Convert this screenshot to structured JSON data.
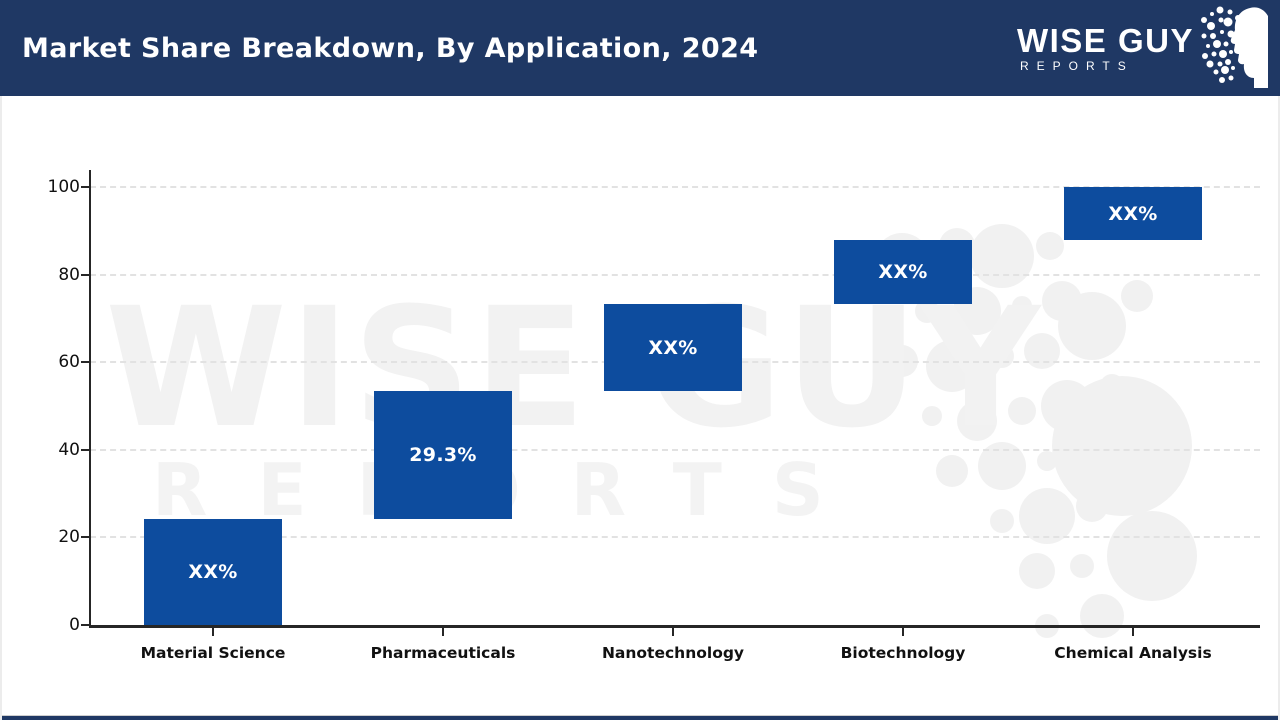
{
  "header": {
    "title": "Market Share Breakdown, By Application, 2024",
    "logo": {
      "brand_top": "WISE GUY",
      "brand_bottom": "REPORTS"
    }
  },
  "watermark": {
    "line1": "WISE GUY",
    "line2": "REPORTS"
  },
  "chart_data": {
    "type": "bar",
    "variant": "waterfall",
    "title": "Market Share Breakdown, By Application, 2024",
    "categories": [
      "Material Science",
      "Pharmaceuticals",
      "Nanotechnology",
      "Biotechnology",
      "Chemical Analysis"
    ],
    "segments": [
      {
        "category": "Material Science",
        "start": 0,
        "end": 24.2,
        "label": "XX%"
      },
      {
        "category": "Pharmaceuticals",
        "start": 24.2,
        "end": 53.5,
        "label": "29.3%"
      },
      {
        "category": "Nanotechnology",
        "start": 53.5,
        "end": 73.2,
        "label": "XX%"
      },
      {
        "category": "Biotechnology",
        "start": 73.2,
        "end": 87.8,
        "label": "XX%"
      },
      {
        "category": "Chemical Analysis",
        "start": 87.8,
        "end": 100,
        "label": "XX%"
      }
    ],
    "ylim": [
      0,
      100
    ],
    "yticks": [
      0,
      20,
      40,
      60,
      80,
      100
    ],
    "xlabel": "",
    "ylabel": "",
    "grid": "horizontal-dashed",
    "legend": "none",
    "bar_color": "#0d4c9e",
    "bar_label_color": "#ffffff"
  },
  "colors": {
    "header_bg": "#1f3864",
    "bar": "#0d4c9e",
    "grid": "#e2e2e2",
    "axis": "#262626",
    "watermark": "#f2f2f2",
    "title_text": "#ffffff"
  }
}
